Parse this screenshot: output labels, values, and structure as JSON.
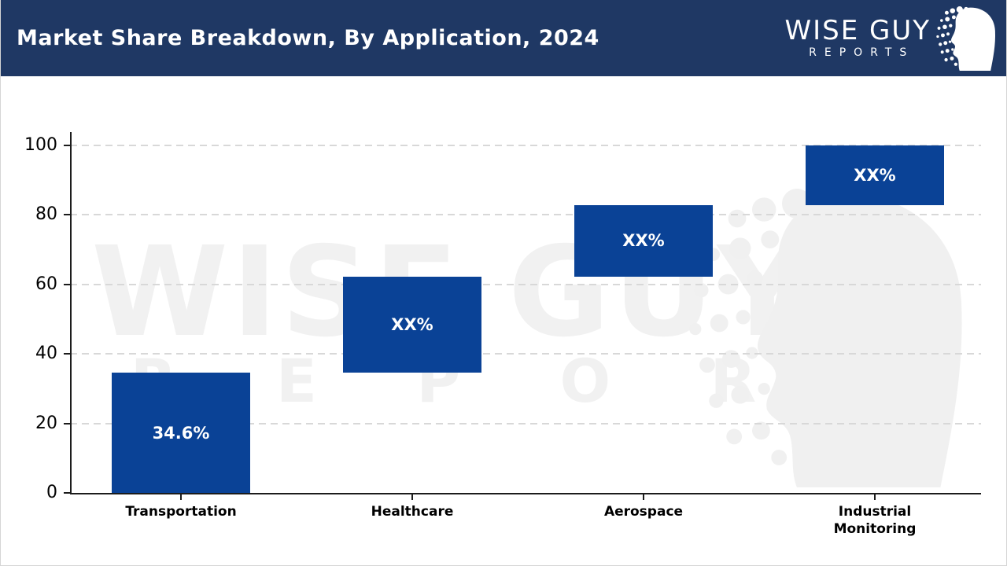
{
  "header": {
    "title": "Market Share Breakdown, By Application, 2024"
  },
  "logo": {
    "line1": "WISE GUY",
    "line2": "REPORTS"
  },
  "watermark": {
    "line1": "WISE GUY",
    "line2": "R E P O R T S"
  },
  "colors": {
    "header_bg": "#1f3864",
    "bar": "#0a4296",
    "gridline": "#d8d8d8",
    "axis": "#1c1c1c",
    "watermark": "#f1f1f1",
    "bar_label_text": "#ffffff"
  },
  "chart_data": {
    "type": "bar",
    "subtype": "waterfall-stacked-segments",
    "title": "Market Share Breakdown, By Application, 2024",
    "categories": [
      "Transportation",
      "Healthcare",
      "Aerospace",
      "Industrial Monitoring"
    ],
    "category_lines": [
      [
        "Transportation"
      ],
      [
        "Healthcare"
      ],
      [
        "Aerospace"
      ],
      [
        "Industrial",
        "Monitoring"
      ]
    ],
    "segments": [
      {
        "category": "Transportation",
        "base": 0,
        "top": 34.6,
        "label": "34.6%"
      },
      {
        "category": "Healthcare",
        "base": 34.6,
        "top": 62.3,
        "label": "XX%"
      },
      {
        "category": "Aerospace",
        "base": 62.3,
        "top": 82.8,
        "label": "XX%"
      },
      {
        "category": "Industrial Monitoring",
        "base": 82.8,
        "top": 100,
        "label": "XX%"
      }
    ],
    "yticks": [
      0,
      20,
      40,
      60,
      80,
      100
    ],
    "ylim": [
      0,
      104
    ],
    "xlabel": "",
    "ylabel": "",
    "grid": "horizontal-dashed",
    "legend": "none",
    "bar_color": "#0a4296"
  }
}
